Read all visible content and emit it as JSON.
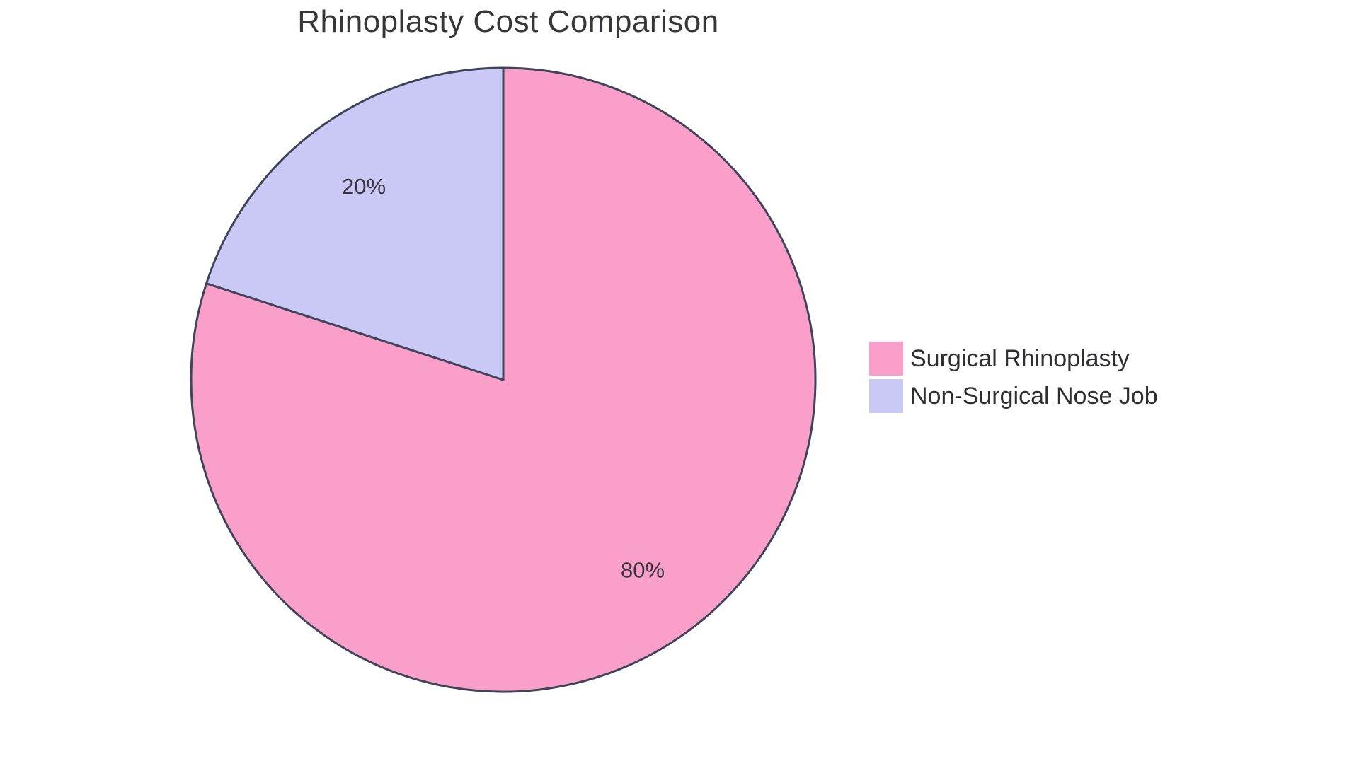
{
  "chart_data": {
    "type": "pie",
    "title": "Rhinoplasty Cost Comparison",
    "slices": [
      {
        "label": "Surgical Rhinoplasty",
        "value": 80,
        "display_pct": "80%",
        "color": "#FA9FC9"
      },
      {
        "label": "Non-Surgical Nose Job",
        "value": 20,
        "display_pct": "20%",
        "color": "#CAC9F6"
      }
    ],
    "start_angle_deg": 90,
    "direction": "clockwise",
    "slice_border_color": "#3E445A",
    "label_color": "#36363C",
    "title_color": "#36363B",
    "legend": {
      "position": "right",
      "text_color": "#2E2E33"
    }
  }
}
